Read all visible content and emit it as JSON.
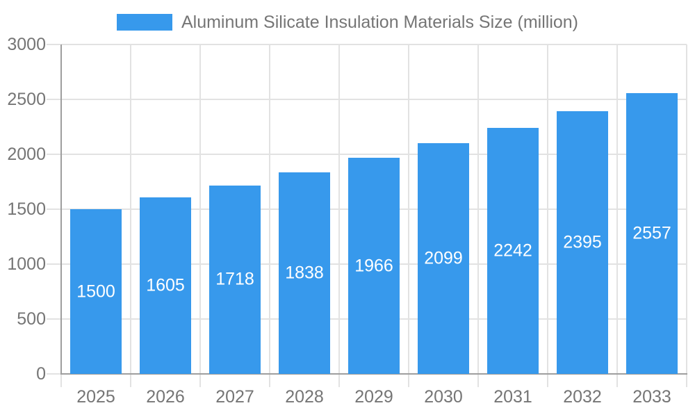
{
  "legend": {
    "label": "Aluminum Silicate Insulation Materials Size (million)"
  },
  "colors": {
    "bar": "#3799EC",
    "grid_line": "#E2E2E2",
    "axis_line": "#9E9E9E",
    "axis_text": "#757575",
    "bar_label_text": "#FFFFFF",
    "background": "#FFFFFF"
  },
  "chart_data": {
    "type": "bar",
    "title": "Aluminum Silicate Insulation Materials Size (million)",
    "series_name": "Aluminum Silicate Insulation Materials Size (million)",
    "categories": [
      "2025",
      "2026",
      "2027",
      "2028",
      "2029",
      "2030",
      "2031",
      "2032",
      "2033"
    ],
    "values": [
      1500,
      1605,
      1718,
      1838,
      1966,
      2099,
      2242,
      2395,
      2557
    ],
    "xlabel": "",
    "ylabel": "",
    "ylim": [
      0,
      3000
    ],
    "ytick_interval": 500,
    "yticks": [
      0,
      500,
      1000,
      1500,
      2000,
      2500,
      3000
    ],
    "grid": true,
    "legend_position": "top",
    "value_label_position": "inside-center"
  }
}
